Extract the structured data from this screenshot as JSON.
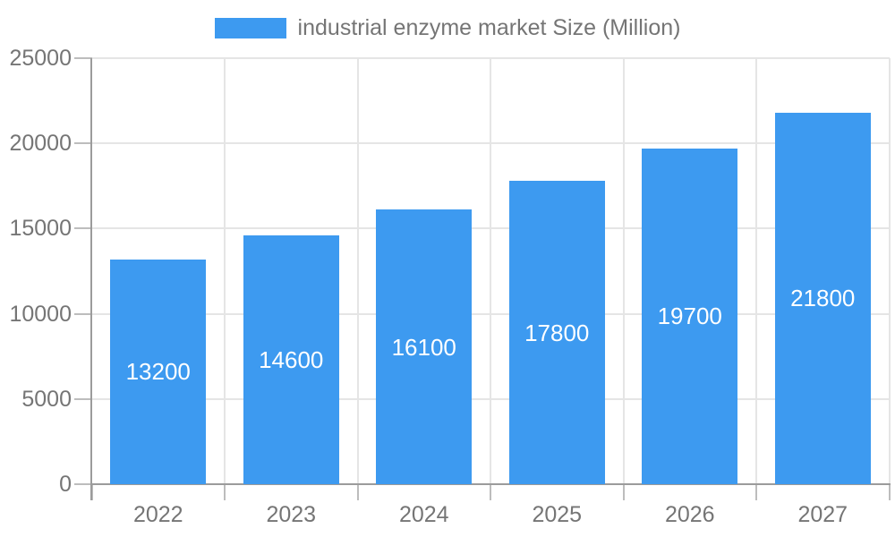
{
  "chart_data": {
    "type": "bar",
    "title": "",
    "legend": "industrial enzyme market Size (Million)",
    "legend_position": "top",
    "categories": [
      "2022",
      "2023",
      "2024",
      "2025",
      "2026",
      "2027"
    ],
    "values": [
      13200,
      14600,
      16100,
      17800,
      19700,
      21800
    ],
    "xlabel": "",
    "ylabel": "",
    "ylim": [
      0,
      25000
    ],
    "yticks": [
      0,
      5000,
      10000,
      15000,
      20000,
      25000
    ],
    "grid": true,
    "value_labels_inside_bars": true
  },
  "colors": {
    "bar": "#3D9AF0",
    "text": "#757575",
    "grid": "#E5E5E5",
    "axis_line": "#9B9B9B",
    "tick": "#BDBDBD",
    "value_label": "#FFFFFF",
    "background": "#FFFFFF"
  }
}
